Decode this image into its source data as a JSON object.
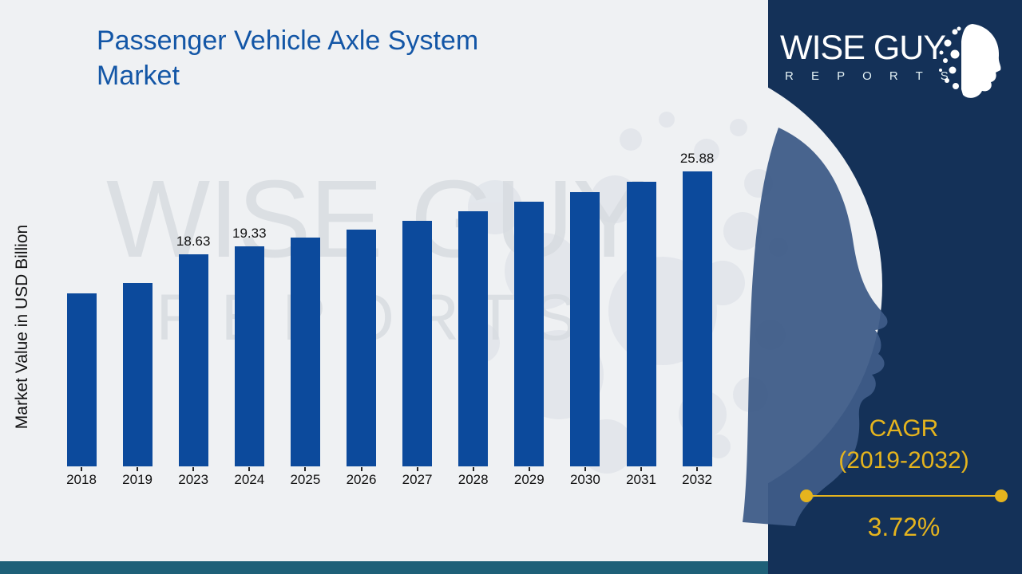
{
  "title": "Passenger Vehicle Axle System\nMarket",
  "watermark": {
    "line1": "WISE GUY",
    "line2": "REPORTS"
  },
  "logo": {
    "line1": "WISE GUY",
    "line2": "R E P O R T S"
  },
  "cagr": {
    "heading": "CAGR",
    "range": "(2019-2032)",
    "value": "3.72%"
  },
  "colors": {
    "bar": "#0c4a9c",
    "title": "#1356a6",
    "navy_panel": "#143158",
    "gold": "#e5b41e",
    "teal_strip": "#1e6078",
    "background": "#eff1f3",
    "watermark": "#d7dbe0"
  },
  "chart_data": {
    "type": "bar",
    "title": "Passenger Vehicle Axle System Market",
    "xlabel": "",
    "ylabel": "Market Value in USD Billion",
    "categories": [
      "2018",
      "2019",
      "2023",
      "2024",
      "2025",
      "2026",
      "2027",
      "2028",
      "2029",
      "2030",
      "2031",
      "2032"
    ],
    "values": [
      15.2,
      16.1,
      18.63,
      19.33,
      20.05,
      20.79,
      21.57,
      22.37,
      23.2,
      24.06,
      24.96,
      25.88
    ],
    "bar_labels": [
      "",
      "",
      "18.63",
      "19.33",
      "",
      "",
      "",
      "",
      "",
      "",
      "",
      "25.88"
    ],
    "ylim": [
      0,
      28
    ],
    "grid": false,
    "legend": "none",
    "bar_color": "#0c4a9c"
  }
}
